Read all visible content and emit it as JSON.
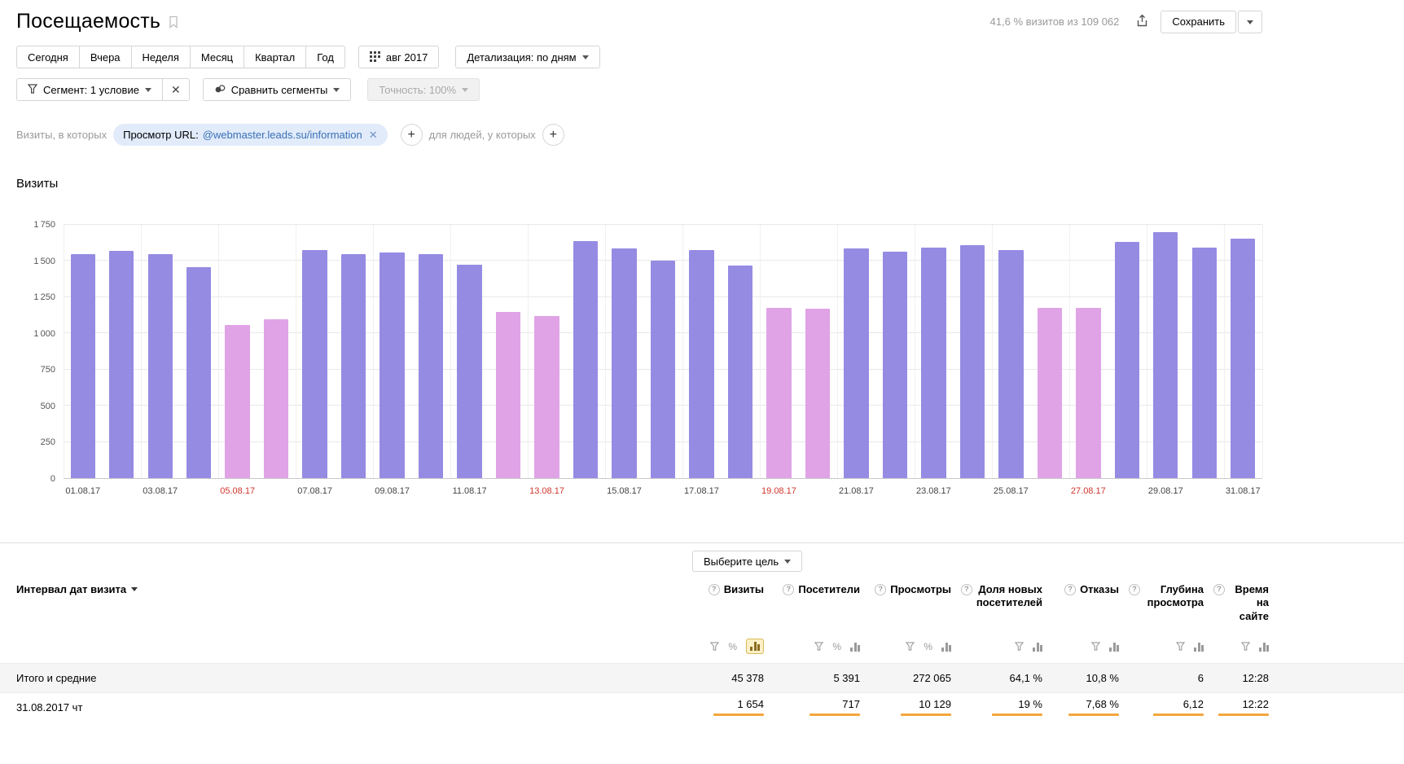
{
  "header": {
    "title": "Посещаемость",
    "stats": "41,6 % визитов из 109 062",
    "save_label": "Сохранить"
  },
  "toolbar": {
    "period_buttons": [
      "Сегодня",
      "Вчера",
      "Неделя",
      "Месяц",
      "Квартал",
      "Год"
    ],
    "date_label": "авг 2017",
    "detail_label": "Детализация: по дням"
  },
  "segments": {
    "segment_label": "Сегмент: 1 условие",
    "compare_label": "Сравнить сегменты",
    "precision_label": "Точность: 100%"
  },
  "filters": {
    "visits_label": "Визиты, в которых",
    "chip_prefix": "Просмотр URL:",
    "chip_value": "@webmaster.leads.su/information",
    "people_label": "для людей, у которых"
  },
  "chart_section": {
    "title": "Визиты"
  },
  "chart_data": {
    "type": "bar",
    "title": "Визиты",
    "ylim": [
      0,
      1750
    ],
    "yticks": [
      0,
      250,
      500,
      750,
      1000,
      1250,
      1500,
      1750
    ],
    "grid": "on",
    "legend": "off",
    "categories": [
      "01.08.17",
      "02.08.17",
      "03.08.17",
      "04.08.17",
      "05.08.17",
      "06.08.17",
      "07.08.17",
      "08.08.17",
      "09.08.17",
      "10.08.17",
      "11.08.17",
      "12.08.17",
      "13.08.17",
      "14.08.17",
      "15.08.17",
      "16.08.17",
      "17.08.17",
      "18.08.17",
      "19.08.17",
      "20.08.17",
      "21.08.17",
      "22.08.17",
      "23.08.17",
      "24.08.17",
      "25.08.17",
      "26.08.17",
      "27.08.17",
      "28.08.17",
      "29.08.17",
      "30.08.17",
      "31.08.17"
    ],
    "values": [
      1550,
      1570,
      1545,
      1455,
      1060,
      1100,
      1575,
      1545,
      1560,
      1550,
      1475,
      1150,
      1120,
      1635,
      1585,
      1505,
      1575,
      1470,
      1175,
      1170,
      1585,
      1565,
      1590,
      1610,
      1575,
      1175,
      1175,
      1630,
      1700,
      1590,
      1654
    ],
    "weekend_indices": [
      4,
      5,
      11,
      12,
      18,
      19,
      25,
      26
    ],
    "x_tick_labels": [
      "01.08.17",
      "03.08.17",
      "05.08.17",
      "07.08.17",
      "09.08.17",
      "11.08.17",
      "13.08.17",
      "15.08.17",
      "17.08.17",
      "19.08.17",
      "21.08.17",
      "23.08.17",
      "25.08.17",
      "27.08.17",
      "29.08.17",
      "31.08.17"
    ],
    "red_tick_labels": [
      "05.08.17",
      "13.08.17",
      "19.08.17",
      "27.08.17"
    ],
    "colors": {
      "weekday": "#958be3",
      "weekend": "#e0a3e6",
      "red_tick": "#d0342c"
    }
  },
  "table": {
    "goal_button": "Выберите цель",
    "row_dimension": "Интервал дат визита",
    "columns": [
      {
        "label": "Визиты",
        "percent": true,
        "active_chart": true
      },
      {
        "label": "Посетители",
        "percent": true,
        "active_chart": false
      },
      {
        "label": "Просмотры",
        "percent": true,
        "active_chart": false
      },
      {
        "label": "Доля новых посетителей",
        "percent": false,
        "active_chart": false
      },
      {
        "label": "Отказы",
        "percent": false,
        "active_chart": false
      },
      {
        "label": "Глубина просмотра",
        "percent": false,
        "active_chart": false
      },
      {
        "label": "Время на сайте",
        "percent": false,
        "active_chart": false
      }
    ],
    "rows": [
      {
        "label": "Итого и средние",
        "is_totals": true,
        "values": [
          "45 378",
          "5 391",
          "272 065",
          "64,1 %",
          "10,8 %",
          "6",
          "12:28"
        ]
      },
      {
        "label": "31.08.2017 чт",
        "is_totals": false,
        "values": [
          "1 654",
          "717",
          "10 129",
          "19 %",
          "7,68 %",
          "6,12",
          "12:22"
        ]
      }
    ]
  }
}
